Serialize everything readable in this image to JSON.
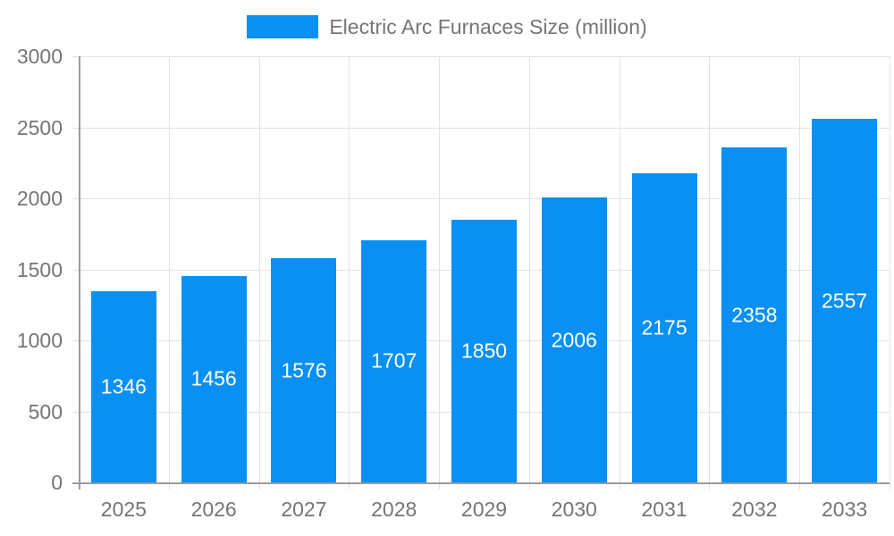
{
  "chart_data": {
    "type": "bar",
    "title": "Electric Arc Furnaces Size (million)",
    "legend_position": "top",
    "categories": [
      "2025",
      "2026",
      "2027",
      "2028",
      "2029",
      "2030",
      "2031",
      "2032",
      "2033"
    ],
    "values": [
      1346,
      1456,
      1576,
      1707,
      1850,
      2006,
      2175,
      2358,
      2557
    ],
    "xlabel": "",
    "ylabel": "",
    "ylim": [
      0,
      3000
    ],
    "y_ticks": [
      0,
      500,
      1000,
      1500,
      2000,
      2500,
      3000
    ],
    "grid": true,
    "value_labels": "inside-center",
    "colors": {
      "bar": "#0990F2",
      "grid": "#e2e2e2",
      "axis": "#9b9b9b",
      "tick_text": "#757575",
      "legend_text": "#757575",
      "value_text": "#ffffff",
      "background": "#ffffff"
    }
  }
}
